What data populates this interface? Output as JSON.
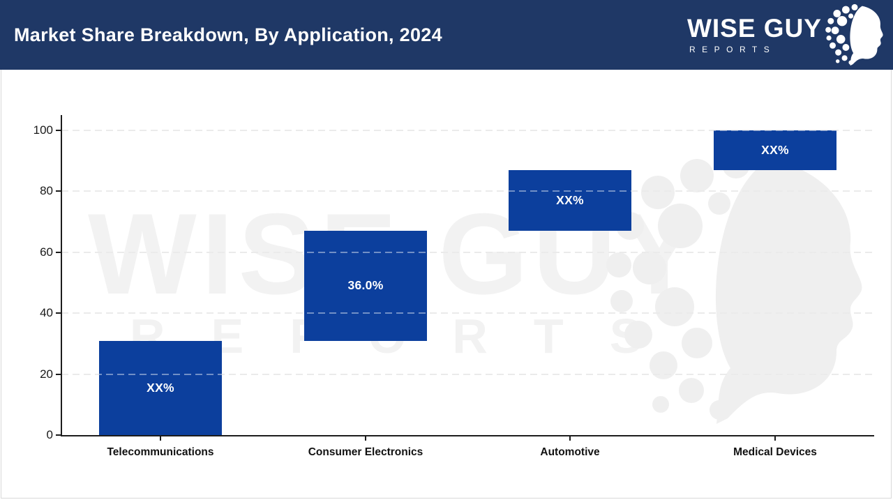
{
  "header": {
    "title": "Market Share Breakdown, By Application, 2024",
    "logo": {
      "line1": "WISE GUY",
      "line2": "REPORTS"
    }
  },
  "watermark": {
    "line1": "WISE GUY",
    "line2": "REPORTS"
  },
  "chart_data": {
    "type": "bar",
    "subtype": "floating-segment-waterfall",
    "title": "Market Share Breakdown, By Application, 2024",
    "categories": [
      "Telecommunications",
      "Consumer Electronics",
      "Automotive",
      "Medical Devices"
    ],
    "segments": [
      {
        "category": "Telecommunications",
        "start": 0,
        "end": 31,
        "label": "XX%"
      },
      {
        "category": "Consumer Electronics",
        "start": 31,
        "end": 67,
        "label": "36.0%"
      },
      {
        "category": "Automotive",
        "start": 67,
        "end": 87,
        "label": "XX%"
      },
      {
        "category": "Medical Devices",
        "start": 87,
        "end": 100,
        "label": "XX%"
      }
    ],
    "xlabel": "",
    "ylabel": "",
    "ylim": [
      0,
      100
    ],
    "yticks": [
      0,
      20,
      40,
      60,
      80,
      100
    ],
    "grid": "horizontal-dashed",
    "legend": "none",
    "colors": {
      "bar": "#0c3f9d",
      "bar_label": "#ffffff",
      "axis": "#1c1c1c",
      "gridline": "#dcdcdc",
      "header_bg": "#1f3866",
      "header_text": "#ffffff",
      "watermark": "#f2f2f2"
    }
  }
}
